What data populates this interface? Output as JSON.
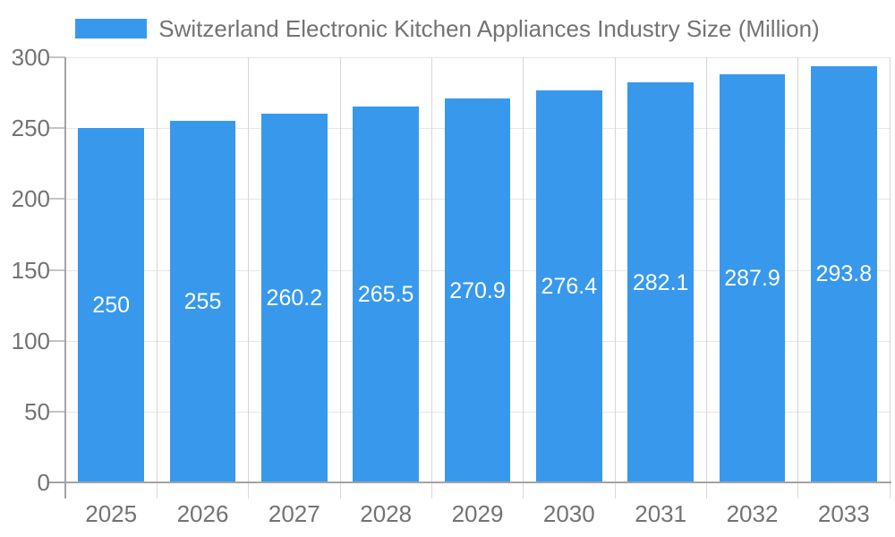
{
  "chart_data": {
    "type": "bar",
    "title": "Switzerland Electronic Kitchen Appliances Industry Size (Million)",
    "legend_entries": [
      "Switzerland Electronic Kitchen Appliances Industry Size (Million)"
    ],
    "legend_position": "top",
    "categories": [
      "2025",
      "2026",
      "2027",
      "2028",
      "2029",
      "2030",
      "2031",
      "2032",
      "2033"
    ],
    "series": [
      {
        "name": "Switzerland Electronic Kitchen Appliances Industry Size (Million)",
        "values": [
          250,
          255,
          260.2,
          265.5,
          270.9,
          276.4,
          282.1,
          287.9,
          293.8
        ]
      }
    ],
    "value_labels": [
      "250",
      "255",
      "260.2",
      "265.5",
      "270.9",
      "276.4",
      "282.1",
      "287.9",
      "293.8"
    ],
    "xlabel": "",
    "ylabel": "",
    "ylim": [
      0,
      300
    ],
    "yticks": [
      0,
      50,
      100,
      150,
      200,
      250,
      300
    ],
    "ytick_labels": [
      "0",
      "50",
      "100",
      "150",
      "200",
      "250",
      "300"
    ],
    "grid": true,
    "colors": {
      "bar": "#3899ec",
      "bar_label": "#ffffff",
      "axis_text": "#737373",
      "title_text": "#737373",
      "axis_line": "#a3a3a3",
      "gridline_h": "#e6e6e6",
      "gridline_v": "#d6d6d6",
      "tick": "#d9d9d9",
      "background": "#ffffff"
    }
  }
}
